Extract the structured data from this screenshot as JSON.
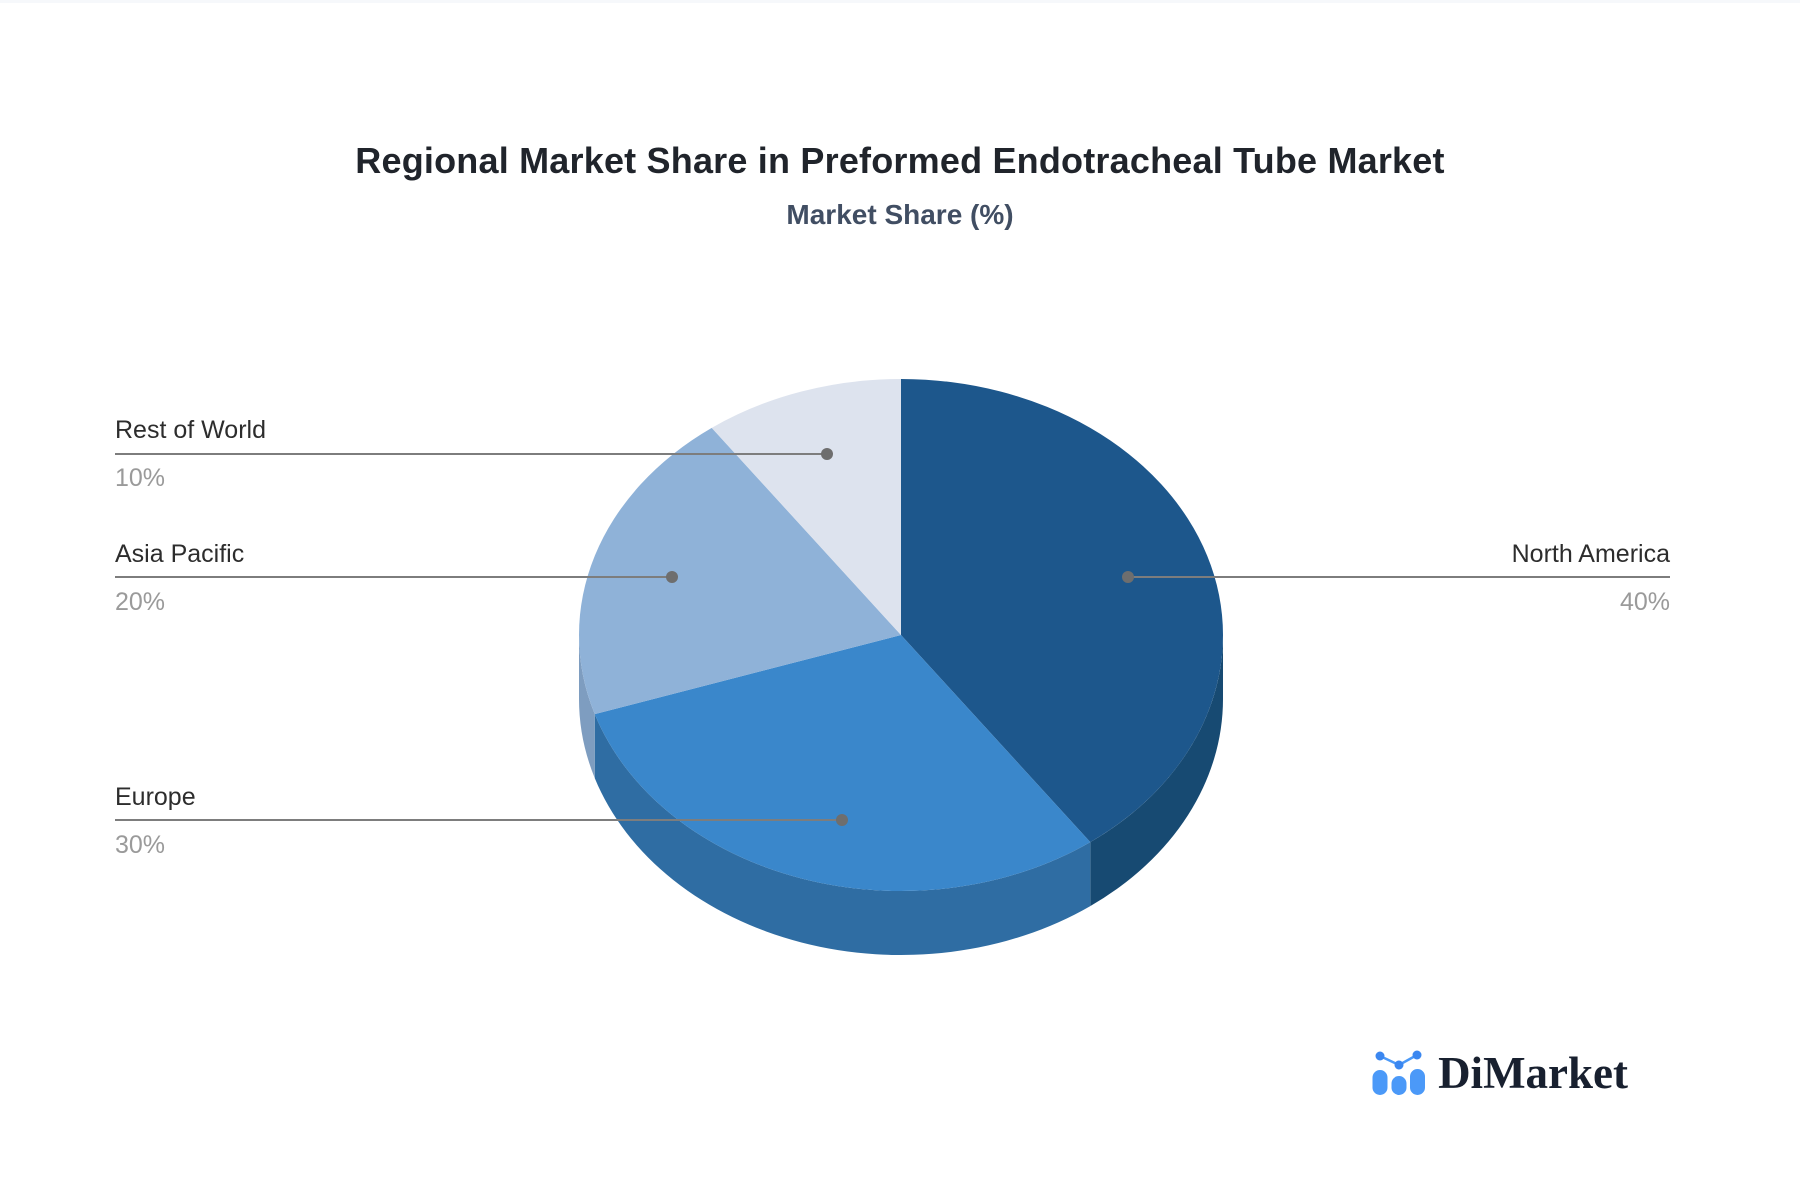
{
  "header": {
    "title": "Regional Market Share in Preformed Endotracheal Tube Market",
    "subtitle": "Market Share (%)"
  },
  "chart_data": {
    "type": "pie",
    "style": "3d",
    "title": "Regional Market Share in Preformed Endotracheal Tube Market",
    "subtitle": "Market Share (%)",
    "unit": "%",
    "labels": [
      "North America",
      "Europe",
      "Asia Pacific",
      "Rest of World"
    ],
    "values": [
      40,
      30,
      20,
      10
    ],
    "display_values": [
      "40%",
      "30%",
      "20%",
      "10%"
    ],
    "colors": [
      "#1d578c",
      "#3a87cb",
      "#8fb2d8",
      "#dde3ee"
    ],
    "side_colors": [
      "#174a72",
      "#2f6da3",
      "#7e9dc0",
      "#c5cfdf"
    ],
    "start_angle": "top",
    "direction": "clockwise",
    "legend": "none",
    "leader_line_color": "#7d7d7d",
    "leader_dot_color": "#6e6e6e",
    "label_text_color": "#2d2d2d",
    "value_text_color": "#9a9a9a"
  },
  "callouts": [
    {
      "label": "North America",
      "value": "40%",
      "side": "right"
    },
    {
      "label": "Europe",
      "value": "30%",
      "side": "left"
    },
    {
      "label": "Asia Pacific",
      "value": "20%",
      "side": "left"
    },
    {
      "label": "Rest of World",
      "value": "10%",
      "side": "left"
    }
  ],
  "logo": {
    "text": "DiMarket",
    "icon": "bar-chart-trend-icon",
    "bar_color": "#4b99f8",
    "dot_color": "#3b87f0",
    "text_color": "#18202f"
  }
}
